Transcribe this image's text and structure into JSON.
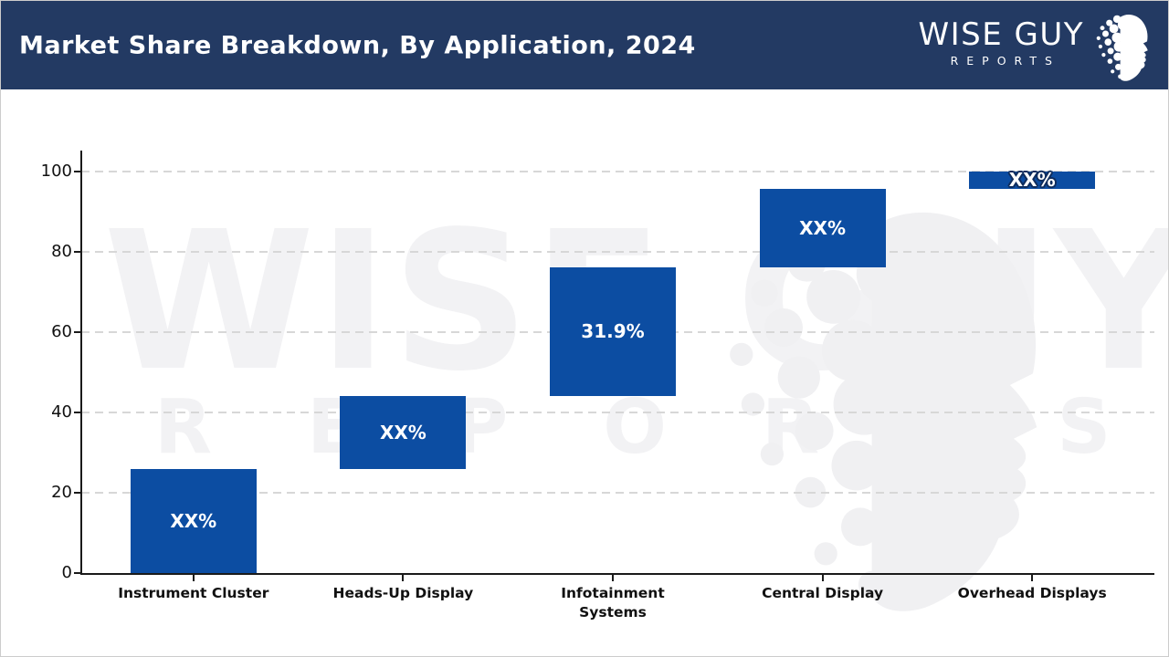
{
  "header": {
    "title": "Market Share Breakdown, By Application, 2024",
    "background_color": "#233A63",
    "logo": {
      "line1": "WISE GUY",
      "line2": "REPORTS"
    }
  },
  "watermark": {
    "line1": "WISE GUY",
    "line2": "REPORTS"
  },
  "chart_data": {
    "type": "bar",
    "subtype": "waterfall",
    "title": "Market Share Breakdown, By Application, 2024",
    "categories": [
      "Instrument Cluster",
      "Heads-Up Display",
      "Infotainment Systems",
      "Central Display",
      "Overhead Displays"
    ],
    "segments": [
      {
        "category": "Instrument Cluster",
        "start": 0,
        "end": 25.8,
        "value_label": "XX%"
      },
      {
        "category": "Heads-Up Display",
        "start": 25.8,
        "end": 44.2,
        "value_label": "XX%"
      },
      {
        "category": "Infotainment Systems",
        "start": 44.2,
        "end": 76.1,
        "value_label": "31.9%"
      },
      {
        "category": "Central Display",
        "start": 76.1,
        "end": 95.7,
        "value_label": "XX%"
      },
      {
        "category": "Overhead Displays",
        "start": 95.7,
        "end": 100,
        "value_label": "XX%"
      }
    ],
    "yticks": [
      0,
      20,
      40,
      60,
      80,
      100
    ],
    "ylim": [
      0,
      105
    ],
    "xlabel": "",
    "ylabel": "",
    "grid": true,
    "gridline_style": "dashed",
    "legend": false,
    "bar_color": "#0C4DA2",
    "label_color": "#ffffff",
    "axis_color": "#1a1a1a"
  }
}
